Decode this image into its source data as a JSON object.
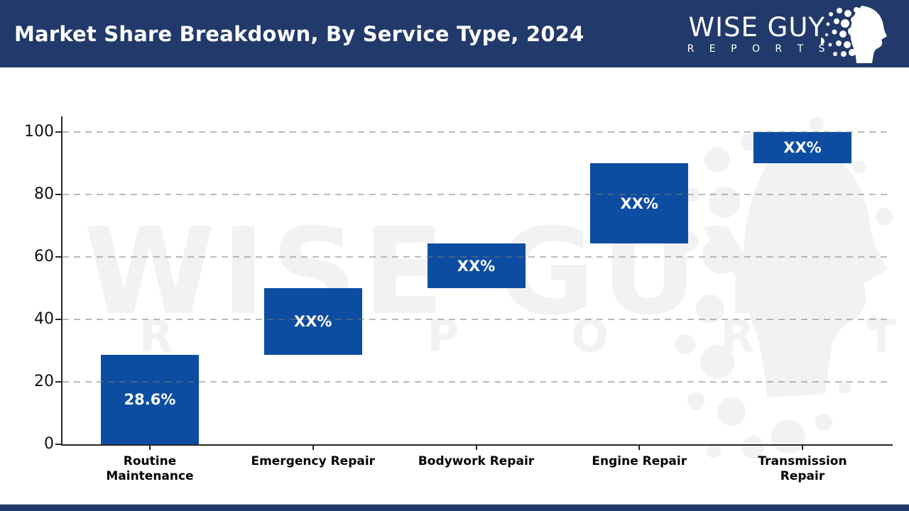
{
  "header": {
    "title": "Market Share Breakdown, By Service Type, 2024",
    "logo": {
      "line1": "WISE GUY",
      "line2": "R E P O R T S"
    }
  },
  "watermark": {
    "line1": "WISE GUY",
    "line2": "R E P O R T S"
  },
  "chart_data": {
    "type": "bar",
    "subtype": "waterfall",
    "title": "Market Share Breakdown, By Service Type, 2024",
    "categories": [
      "Routine\nMaintenance",
      "Emergency Repair",
      "Bodywork Repair",
      "Engine Repair",
      "Transmission\nRepair"
    ],
    "segments": [
      {
        "category": "Routine Maintenance",
        "label": "28.6%",
        "start": 0,
        "end": 28.6
      },
      {
        "category": "Emergency Repair",
        "label": "XX%",
        "start": 28.6,
        "end": 50.0
      },
      {
        "category": "Bodywork Repair",
        "label": "XX%",
        "start": 50.0,
        "end": 64.3
      },
      {
        "category": "Engine Repair",
        "label": "XX%",
        "start": 64.3,
        "end": 90.0
      },
      {
        "category": "Transmission Repair",
        "label": "XX%",
        "start": 90.0,
        "end": 100.0
      }
    ],
    "y_ticks": [
      0,
      20,
      40,
      60,
      80,
      100
    ],
    "ylim": [
      0,
      105
    ],
    "xlabel": "",
    "ylabel": "",
    "grid": "horizontal-dashed",
    "legend": "none",
    "bar_color": "#0d4da1",
    "value_label_color": "#ffffff"
  },
  "colors": {
    "header_bg": "#21396b",
    "footer_bg": "#21396b",
    "bar": "#0d4da1",
    "axis": "#262626",
    "watermark": "#f2f2f2"
  }
}
